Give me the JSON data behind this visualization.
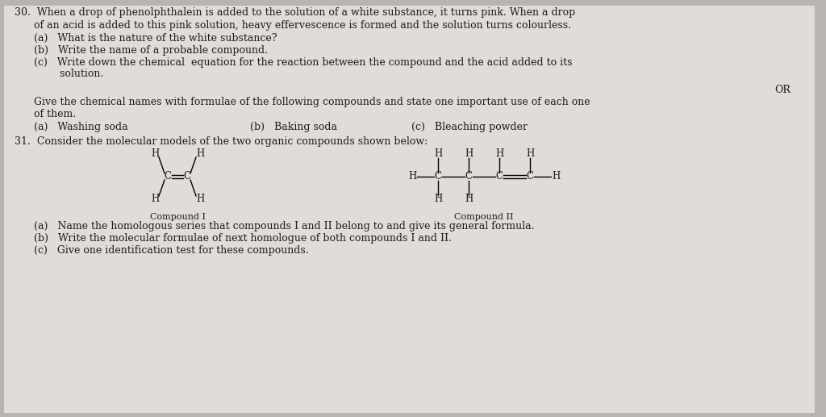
{
  "bg_color": "#b8b4b0",
  "paper_color": "#e0ddd8",
  "text_color": "#1c1c1c",
  "title_q30": "30.  When a drop of phenolphthalein is added to the solution of a white substance, it turns pink. When a drop",
  "q30_line2": "      of an acid is added to this pink solution, heavy effervescence is formed and the solution turns colourless.",
  "q30a": "      (a)   What is the nature of the white substance?",
  "q30b": "      (b)   Write the name of a probable compound.",
  "q30c": "      (c)   Write down the chemical  equation for the reaction between the compound and the acid added to its",
  "q30c2": "              solution.",
  "or_text": "OR",
  "or_para": "      Give the chemical names with formulae of the following compounds and state one important use of each one",
  "or_para2": "      of them.",
  "or_a": "      (a)   Washing soda",
  "or_b": "(b)   Baking soda",
  "or_c": "(c)   Bleaching powder",
  "q31": "31.  Consider the molecular models of the two organic compounds shown below:",
  "compound1_label": "Compound I",
  "compound2_label": "Compound II",
  "q31a": "      (a)   Name the homologous series that compounds I and II belong to and give its general formula.",
  "q31b": "      (b)   Write the molecular formulae of next homologue of both compounds I and II.",
  "q31c": "      (c)   Give one identification test for these compounds.",
  "font_size_main": 9.0,
  "font_size_small": 8.0,
  "font_size_struct": 8.5
}
